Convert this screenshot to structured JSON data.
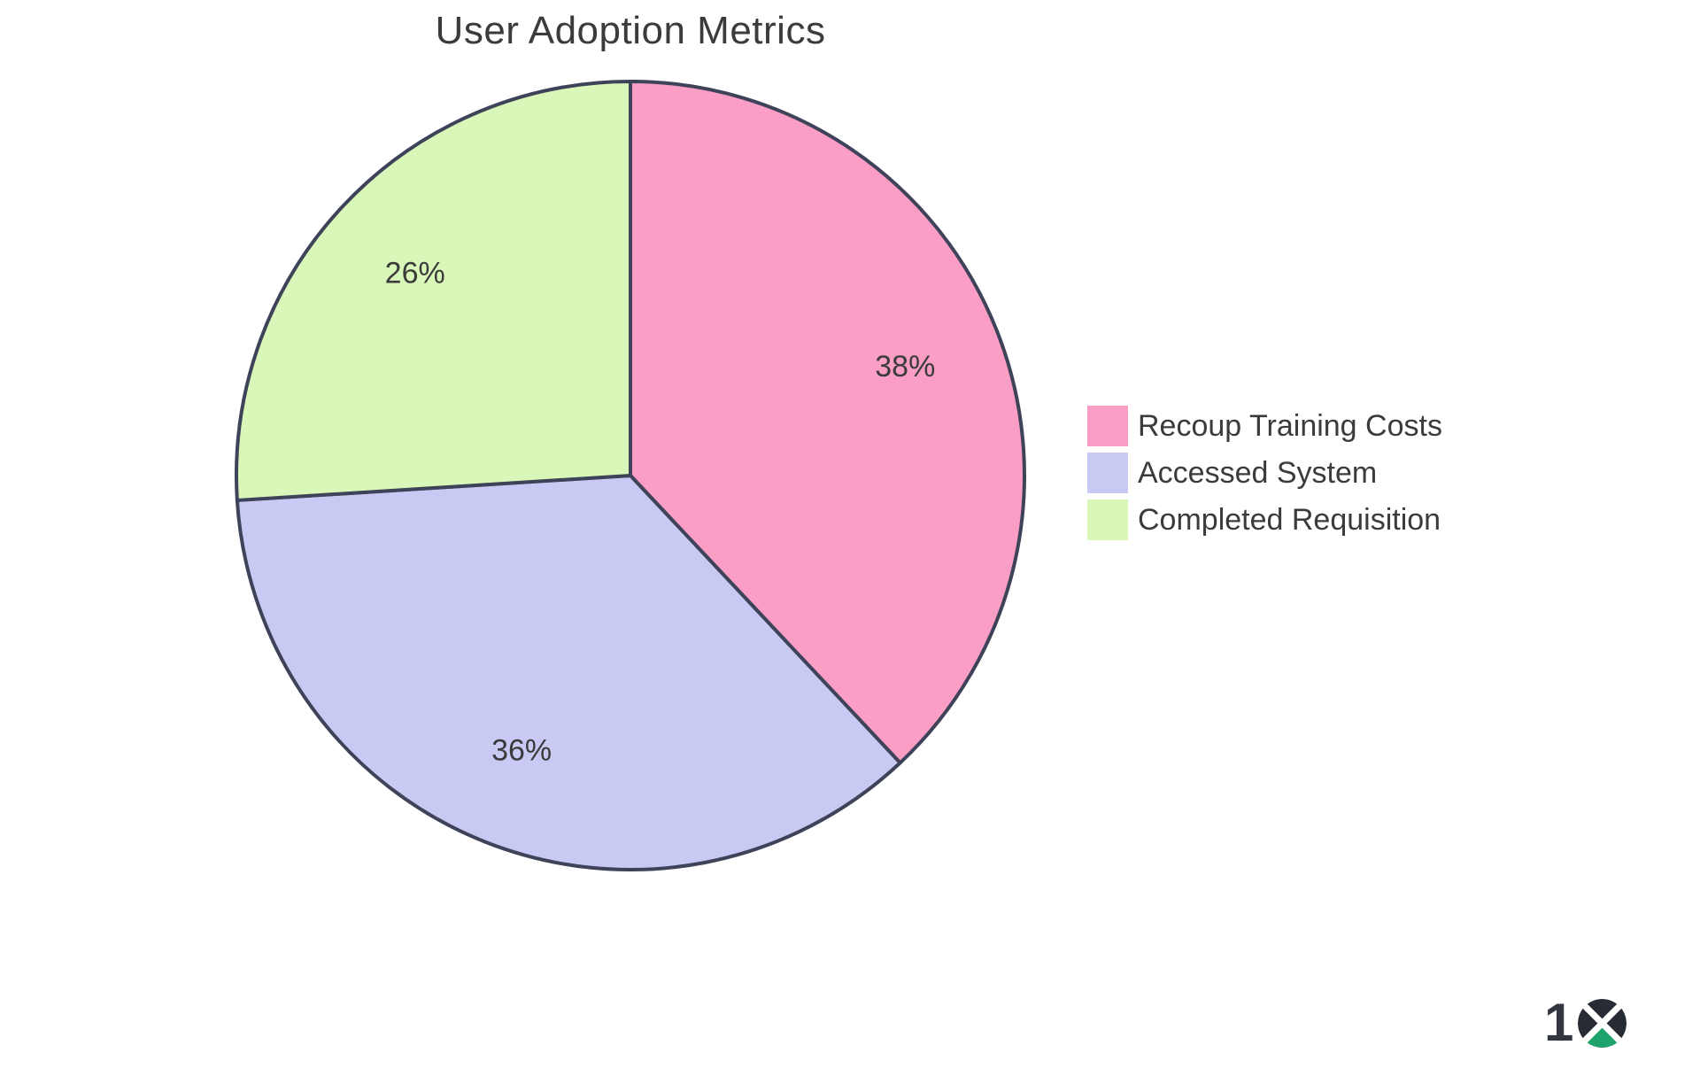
{
  "chart_data": {
    "type": "pie",
    "title": "User Adoption Metrics",
    "slices": [
      {
        "label": "Recoup Training Costs",
        "value": 38,
        "pct_label": "38%",
        "color": "#FA9EC6"
      },
      {
        "label": "Accessed System",
        "value": 36,
        "pct_label": "36%",
        "color": "#C8CAF4"
      },
      {
        "label": "Completed Requisition",
        "value": 26,
        "pct_label": "26%",
        "color": "#D9F7B9"
      }
    ],
    "total": 100,
    "start_angle_deg": 0,
    "direction": "clockwise",
    "stroke_color": "#3E4359",
    "stroke_width": 4,
    "label_color": "#3B3B3B",
    "label_font_size": 34,
    "legend_position": "right",
    "legend_labels": [
      "Recoup Training Costs",
      "Accessed System",
      "Completed Requisition"
    ]
  },
  "branding": {
    "text": "1",
    "icon": "x-circle-icon",
    "icon_dark_color": "#272B33",
    "icon_green_color": "#1EA36C",
    "icon_cross_color": "#FFFFFF"
  }
}
